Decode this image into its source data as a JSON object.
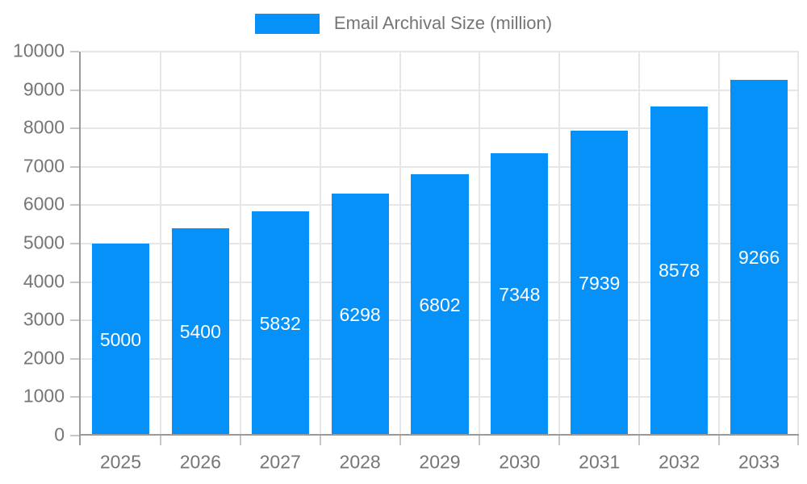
{
  "legend": {
    "label": "Email Archival Size (million)"
  },
  "colors": {
    "bar": "#0691F8",
    "grid": "#E6E6E6",
    "axis": "#9A9A9A",
    "tick": "#C6C6C6",
    "text": "#757575",
    "value_label": "#FFFFFF",
    "background": "#FFFFFF"
  },
  "chart_data": {
    "type": "bar",
    "title": "Email Archival Size (million)",
    "categories": [
      "2025",
      "2026",
      "2027",
      "2028",
      "2029",
      "2030",
      "2031",
      "2032",
      "2033"
    ],
    "values": [
      5000,
      5400,
      5832,
      6298,
      6802,
      7348,
      7939,
      8578,
      9266
    ],
    "xlabel": "",
    "ylabel": "",
    "ylim": [
      0,
      10000
    ],
    "ytick_step": 1000,
    "ytick_labels": [
      "0",
      "1000",
      "2000",
      "3000",
      "4000",
      "5000",
      "6000",
      "7000",
      "8000",
      "9000",
      "10000"
    ],
    "grid": true,
    "legend_position": "top",
    "value_labels": "inside-center",
    "series": [
      {
        "name": "Email Archival Size (million)",
        "values": [
          5000,
          5400,
          5832,
          6298,
          6802,
          7348,
          7939,
          8578,
          9266
        ]
      }
    ]
  }
}
